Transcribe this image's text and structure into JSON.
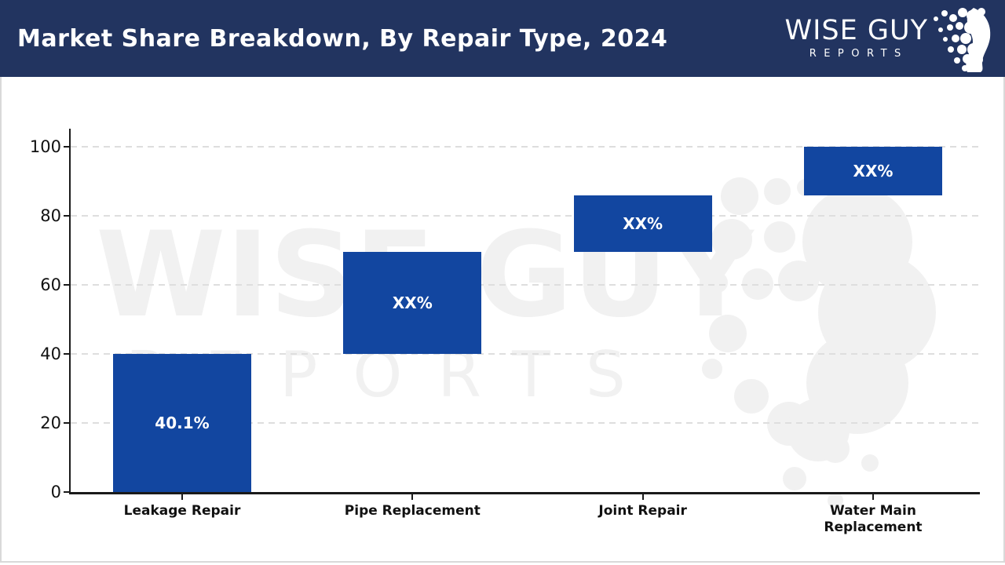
{
  "header": {
    "title": "Market Share Breakdown, By Repair Type, 2024"
  },
  "logo": {
    "name": "WISE GUY",
    "subtitle": "REPORTS"
  },
  "watermark": {
    "line1": "WISE GUY",
    "line2": "REPORTS"
  },
  "colors": {
    "header_bg": "#223460",
    "bar": "#1246a0",
    "bar_label": "#ffffff",
    "axis": "#1a1a1a",
    "grid": "#dedede",
    "border": "#d9d9d9",
    "watermark": "#f1f1f1",
    "tick_text": "#111111"
  },
  "chart_data": {
    "type": "bar",
    "subtype": "floating-waterfall",
    "title": "Market Share Breakdown, By Repair Type, 2024",
    "categories": [
      "Leakage Repair",
      "Pipe Replacement",
      "Joint Repair",
      "Water Main Replacement"
    ],
    "segments": [
      {
        "category": "Leakage Repair",
        "start": 0,
        "end": 40.1,
        "label": "40.1%"
      },
      {
        "category": "Pipe Replacement",
        "start": 40.1,
        "end": 69.5,
        "label": "XX%"
      },
      {
        "category": "Joint Repair",
        "start": 69.5,
        "end": 85.8,
        "label": "XX%"
      },
      {
        "category": "Water Main Replacement",
        "start": 85.8,
        "end": 100,
        "label": "XX%"
      }
    ],
    "yticks": [
      0,
      20,
      40,
      60,
      80,
      100
    ],
    "ylim": [
      0,
      105
    ],
    "xlabel": "",
    "ylabel": "",
    "grid": "horizontal dashed",
    "legend": "none",
    "bar_color": "#1246a0",
    "bar_label_color": "#ffffff"
  }
}
